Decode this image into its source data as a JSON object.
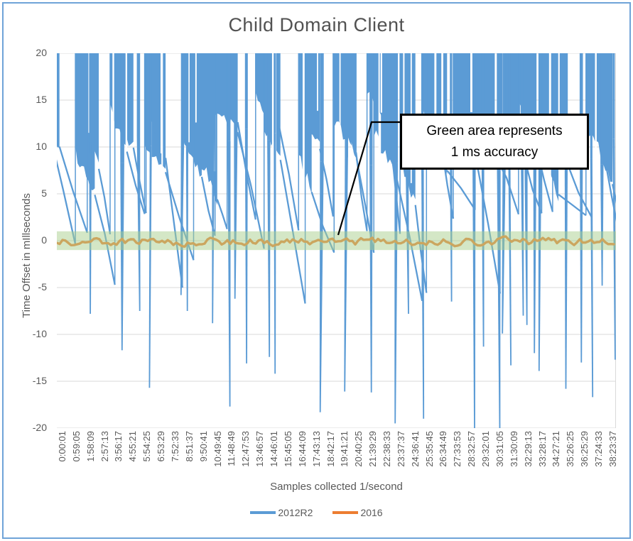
{
  "chart_title": "Child Domain Client",
  "colors": {
    "series_2012R2": "#5B9BD5",
    "series_2016": "#ED7D31",
    "accuracy_band_green": "#A9D08E",
    "gridline": "#D9D9D9",
    "axis_text": "#595959",
    "title_text": "#525252",
    "chart_border": "#6FA3D8",
    "annotation_border": "#000000"
  },
  "chart_data": {
    "type": "line",
    "title": "Child Domain Client",
    "xlabel": "Samples collected 1/second",
    "ylabel": "Time Offset in mIllseconds",
    "ylim": [
      -20,
      20
    ],
    "yticks": [
      20,
      15,
      10,
      5,
      0,
      -5,
      -10,
      -15,
      -20
    ],
    "grid": "horizontal gridlines every 5 ms",
    "legend_position": "bottom",
    "xticklabels": [
      "0:00:01",
      "0:59:05",
      "1:58:09",
      "2:57:13",
      "3:56:17",
      "4:55:21",
      "5:54:25",
      "6:53:29",
      "7:52:33",
      "8:51:37",
      "9:50:41",
      "10:49:45",
      "11:48:49",
      "12:47:53",
      "13:46:57",
      "14:46:01",
      "15:45:05",
      "16:44:09",
      "17:43:13",
      "18:42:17",
      "19:41:21",
      "20:40:25",
      "21:39:29",
      "22:38:33",
      "23:37:37",
      "24:36:41",
      "25:35:45",
      "26:34:49",
      "27:33:53",
      "28:32:57",
      "29:32:01",
      "30:31:05",
      "31:30:09",
      "32:29:13",
      "33:28:17",
      "34:27:21",
      "35:26:25",
      "36:25:29",
      "37:24:33",
      "38:23:37"
    ],
    "legend": [
      {
        "name": "2012R2",
        "color": "#5B9BD5"
      },
      {
        "name": "2016",
        "color": "#ED7D31"
      }
    ],
    "annotation": {
      "text_lines": [
        "Green area represents",
        "1 ms accuracy"
      ],
      "points_to": "green accuracy band at 0 ms"
    },
    "accuracy_band": {
      "from_ms": -1,
      "to_ms": 1,
      "color": "#A9D08E",
      "opacity": 0.5
    },
    "series": [
      {
        "name": "2012R2",
        "color": "#5B9BD5",
        "pattern": "dense sawtooth",
        "description": "Offset repeatedly jumps above +20 ms (clipped at axis top) then drifts downward; most troughs land between +3 and -5 ms, with intermittent deep drops listed in deep_troughs (x is fraction of plot width).",
        "clipped_at_ms": 20,
        "seed": 20,
        "deep_troughs": [
          {
            "x": 0.06,
            "ms": -7.8
          },
          {
            "x": 0.117,
            "ms": -11.7
          },
          {
            "x": 0.146,
            "ms": -7.5
          },
          {
            "x": 0.168,
            "ms": -15.7
          },
          {
            "x": 0.225,
            "ms": -5.8
          },
          {
            "x": 0.233,
            "ms": -7.5
          },
          {
            "x": 0.28,
            "ms": -8.8
          },
          {
            "x": 0.308,
            "ms": -17.7
          },
          {
            "x": 0.32,
            "ms": -6.2
          },
          {
            "x": 0.339,
            "ms": -13.1
          },
          {
            "x": 0.379,
            "ms": -12.4
          },
          {
            "x": 0.39,
            "ms": -14.2
          },
          {
            "x": 0.474,
            "ms": -18.3
          },
          {
            "x": 0.518,
            "ms": -16.1
          },
          {
            "x": 0.562,
            "ms": -16.2
          },
          {
            "x": 0.607,
            "ms": -19.5
          },
          {
            "x": 0.626,
            "ms": -7.8
          },
          {
            "x": 0.654,
            "ms": -19.0
          },
          {
            "x": 0.705,
            "ms": -6.5
          },
          {
            "x": 0.746,
            "ms": -20.3
          },
          {
            "x": 0.762,
            "ms": -11.3
          },
          {
            "x": 0.79,
            "ms": -20.3
          },
          {
            "x": 0.8,
            "ms": -9.9
          },
          {
            "x": 0.809,
            "ms": -13.3
          },
          {
            "x": 0.832,
            "ms": -8.0
          },
          {
            "x": 0.839,
            "ms": -9.0
          },
          {
            "x": 0.855,
            "ms": -12.0
          },
          {
            "x": 0.864,
            "ms": -13.9
          },
          {
            "x": 0.911,
            "ms": -15.8
          },
          {
            "x": 0.938,
            "ms": -13.0
          },
          {
            "x": 0.956,
            "ms": -16.7
          },
          {
            "x": 0.975,
            "ms": -4.8
          },
          {
            "x": 0.996,
            "ms": -12.7
          }
        ]
      },
      {
        "name": "2016",
        "color": "#ED7D31",
        "pattern": "flat noisy line",
        "mean_ms": -0.1,
        "max_deviation_ms": 0.5,
        "description": "Remains within about ±0.5 ms of zero for the whole capture."
      }
    ]
  }
}
